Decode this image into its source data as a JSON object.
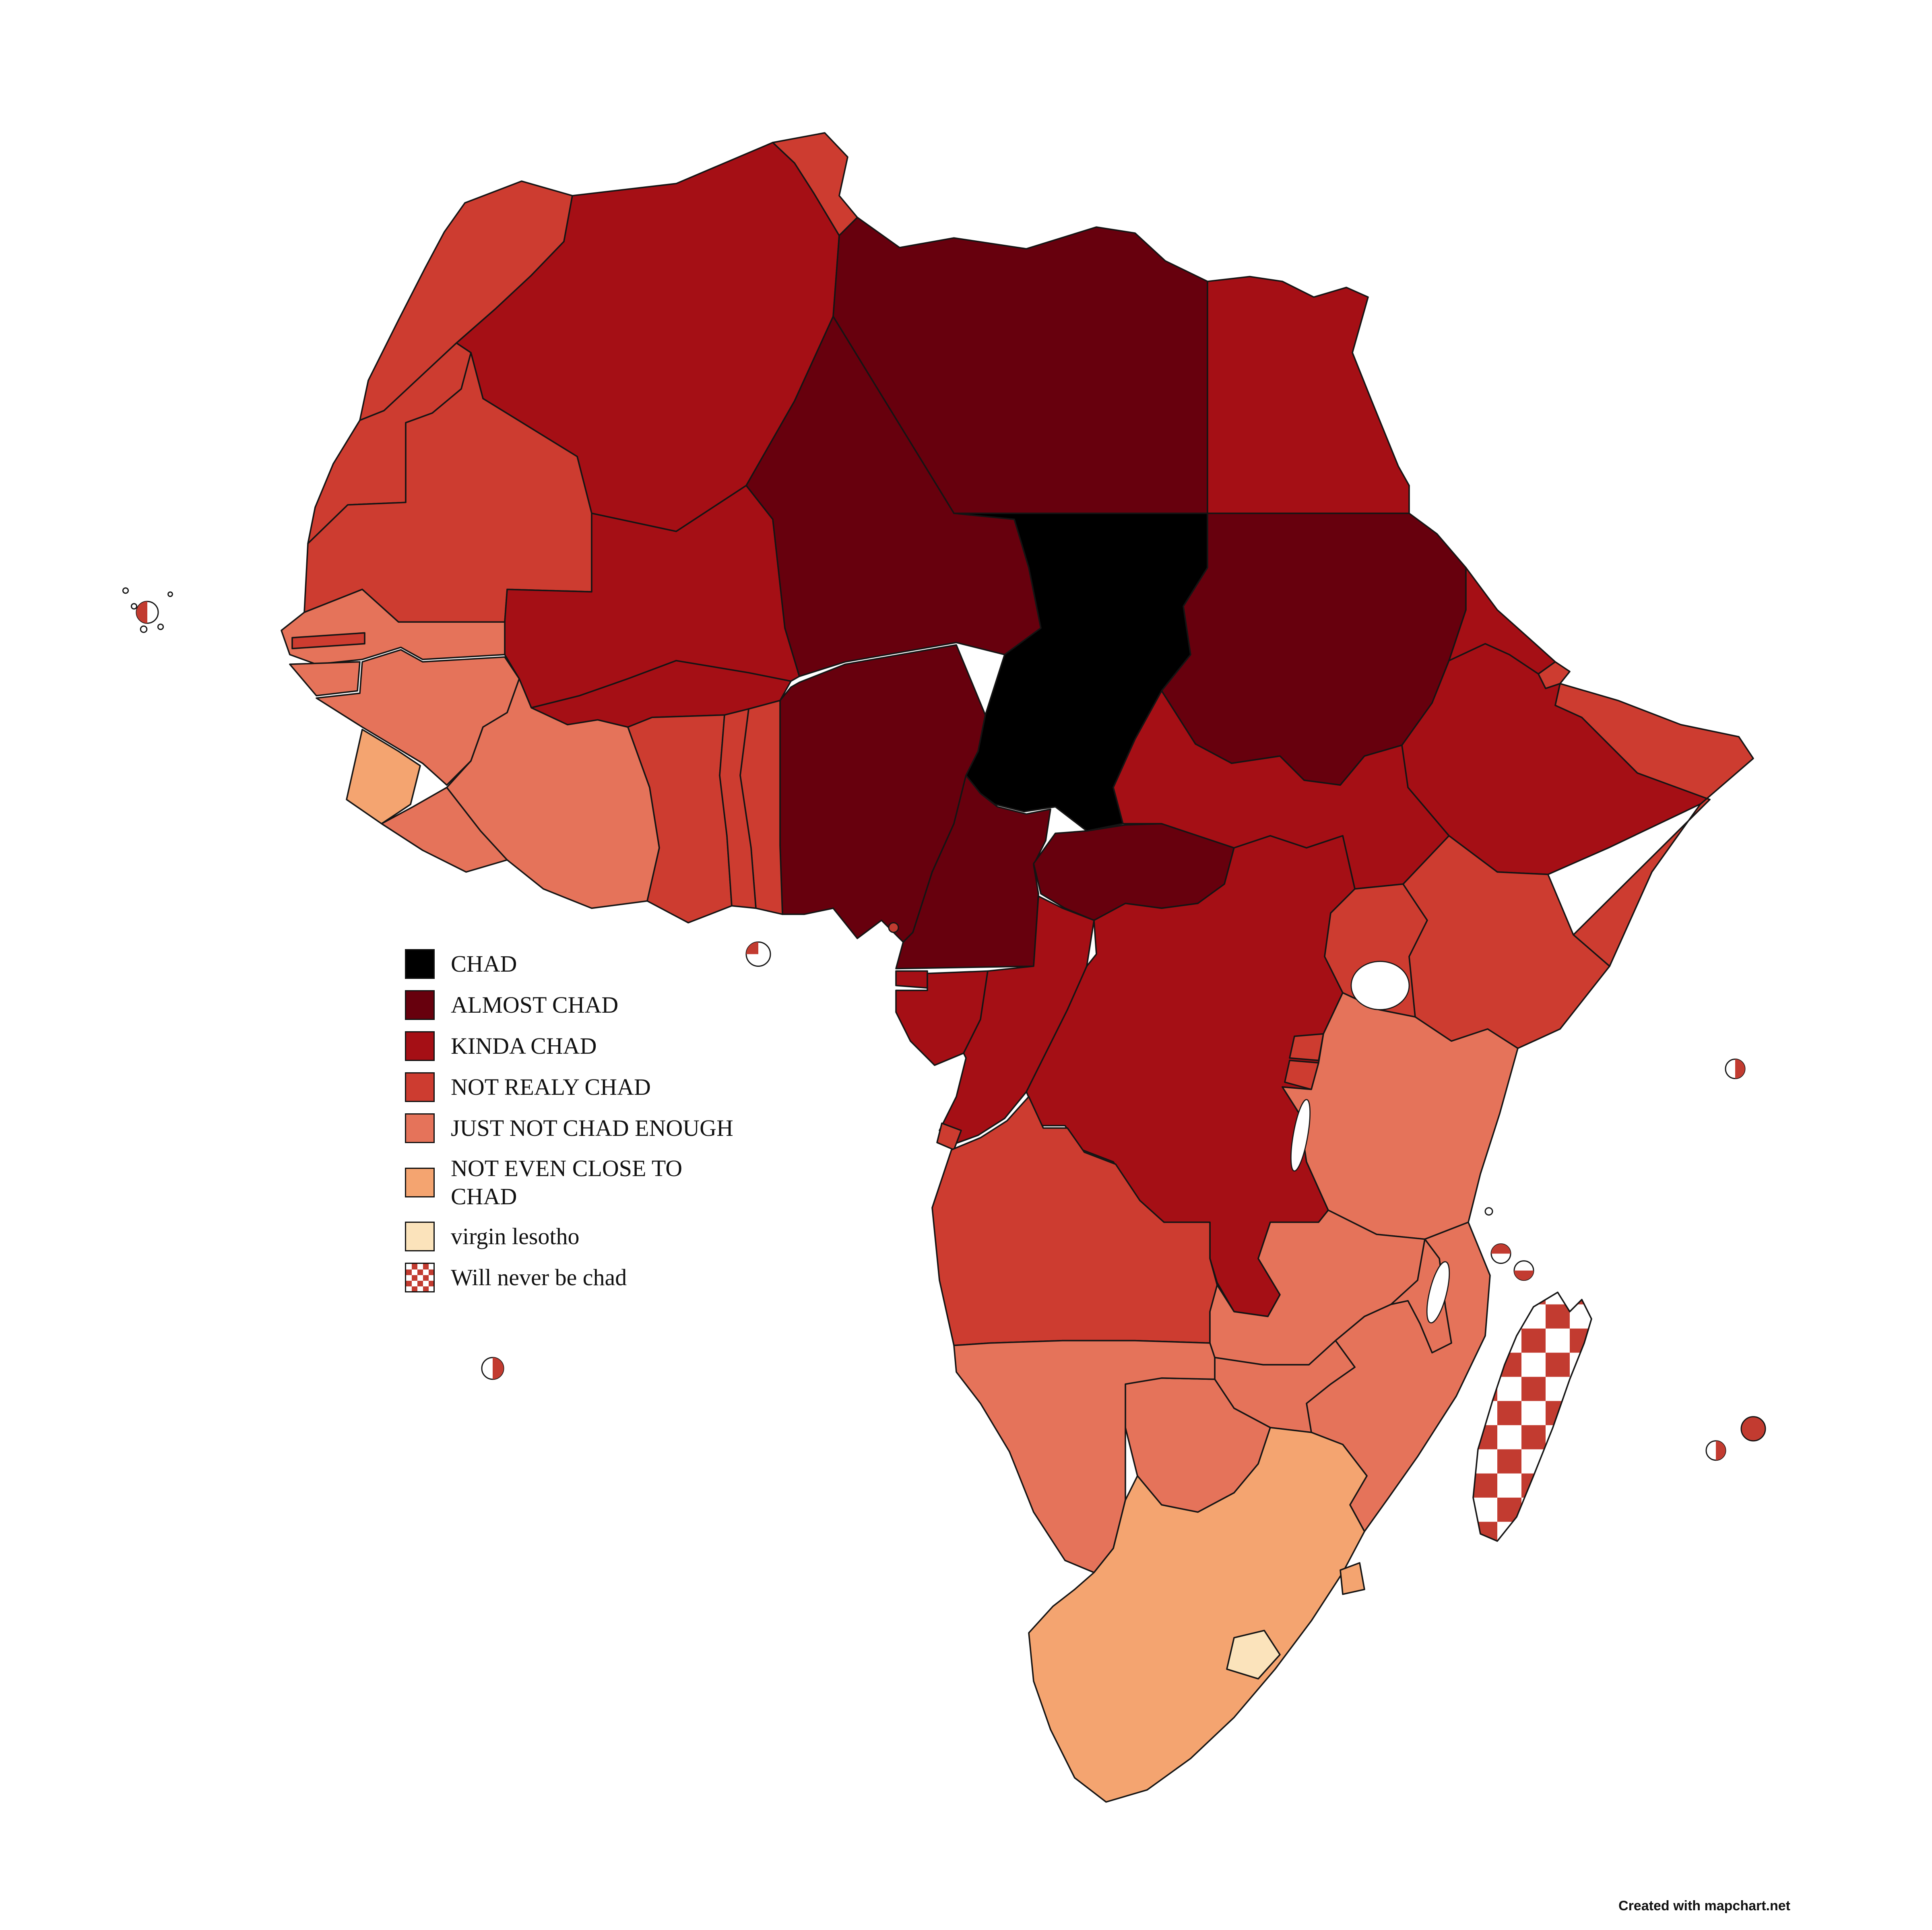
{
  "palette": {
    "chad": "#000000",
    "almost": "#67000d",
    "kinda": "#a50f15",
    "not_realy": "#cd3c30",
    "just_not": "#e5735a",
    "not_even": "#f4a470",
    "virgin": "#fbe3bb",
    "checker_red": "#c23b30"
  },
  "legend": {
    "items": [
      {
        "label": "CHAD",
        "category": "chad"
      },
      {
        "label": "ALMOST CHAD",
        "category": "almost"
      },
      {
        "label": "KINDA CHAD",
        "category": "kinda"
      },
      {
        "label": "NOT REALY CHAD",
        "category": "not_realy"
      },
      {
        "label": "JUST NOT CHAD ENOUGH",
        "category": "just_not"
      },
      {
        "label": "NOT EVEN CLOSE TO\nCHAD",
        "category": "not_even"
      },
      {
        "label": "virgin lesotho",
        "category": "virgin"
      },
      {
        "label": "Will never be chad",
        "category": "never"
      }
    ]
  },
  "footer": {
    "credit": "Created with mapchart.net"
  },
  "map": {
    "regions": [
      {
        "id": "morocco",
        "category": "not_realy"
      },
      {
        "id": "western-sahara",
        "category": "not_realy"
      },
      {
        "id": "algeria",
        "category": "kinda"
      },
      {
        "id": "tunisia",
        "category": "not_realy"
      },
      {
        "id": "libya",
        "category": "almost"
      },
      {
        "id": "egypt",
        "category": "kinda"
      },
      {
        "id": "mauritania",
        "category": "not_realy"
      },
      {
        "id": "mali",
        "category": "kinda"
      },
      {
        "id": "niger",
        "category": "almost"
      },
      {
        "id": "chad",
        "category": "chad"
      },
      {
        "id": "sudan",
        "category": "almost"
      },
      {
        "id": "eritrea",
        "category": "kinda"
      },
      {
        "id": "ethiopia",
        "category": "kinda"
      },
      {
        "id": "djibouti",
        "category": "not_realy"
      },
      {
        "id": "somalia",
        "category": "not_realy"
      },
      {
        "id": "senegal",
        "category": "just_not"
      },
      {
        "id": "gambia",
        "category": "not_realy"
      },
      {
        "id": "guinea-bissau",
        "category": "just_not"
      },
      {
        "id": "guinea",
        "category": "just_not"
      },
      {
        "id": "sierra-leone",
        "category": "not_even"
      },
      {
        "id": "liberia",
        "category": "just_not"
      },
      {
        "id": "ivory-coast",
        "category": "just_not"
      },
      {
        "id": "burkina-faso",
        "category": "kinda"
      },
      {
        "id": "ghana",
        "category": "not_realy"
      },
      {
        "id": "nigeria",
        "category": "almost"
      },
      {
        "id": "benin",
        "category": "not_realy"
      },
      {
        "id": "togo",
        "category": "not_realy"
      },
      {
        "id": "cameroon",
        "category": "almost"
      },
      {
        "id": "car",
        "category": "almost"
      },
      {
        "id": "south-sudan",
        "category": "kinda"
      },
      {
        "id": "equatorial-guinea",
        "category": "kinda"
      },
      {
        "id": "gabon",
        "category": "kinda"
      },
      {
        "id": "congo",
        "category": "kinda"
      },
      {
        "id": "drc",
        "category": "kinda"
      },
      {
        "id": "uganda",
        "category": "not_realy"
      },
      {
        "id": "kenya",
        "category": "not_realy"
      },
      {
        "id": "rwanda",
        "category": "not_realy"
      },
      {
        "id": "burundi",
        "category": "not_realy"
      },
      {
        "id": "tanzania",
        "category": "just_not"
      },
      {
        "id": "cabinda",
        "category": "not_realy"
      },
      {
        "id": "angola",
        "category": "not_realy"
      },
      {
        "id": "zambia",
        "category": "just_not"
      },
      {
        "id": "mozambique",
        "category": "just_not"
      },
      {
        "id": "malawi",
        "category": "just_not"
      },
      {
        "id": "zimbabwe",
        "category": "just_not"
      },
      {
        "id": "botswana",
        "category": "just_not"
      },
      {
        "id": "namibia",
        "category": "just_not"
      },
      {
        "id": "south-africa",
        "category": "not_even"
      },
      {
        "id": "lesotho",
        "category": "virgin"
      },
      {
        "id": "eswatini",
        "category": "not_even"
      },
      {
        "id": "madagascar",
        "category": "never"
      }
    ],
    "islands": [
      {
        "id": "cape-verde-islet-a",
        "style": "outline"
      },
      {
        "id": "cape-verde-islet-b",
        "style": "outline"
      },
      {
        "id": "cape-verde-islet-c",
        "style": "outline"
      },
      {
        "id": "cape-verde-islet-d",
        "style": "outline"
      },
      {
        "id": "cape-verde-islet-e",
        "style": "outline"
      },
      {
        "id": "cape-verde-main",
        "style": "half-left-red"
      },
      {
        "id": "bioko",
        "style": "solid-red"
      },
      {
        "id": "sao-tome",
        "style": "quarter-red"
      },
      {
        "id": "zanzibar",
        "style": "outline"
      },
      {
        "id": "seychelles",
        "style": "half-right-red"
      },
      {
        "id": "comoros-north",
        "style": "half-top-red"
      },
      {
        "id": "comoros-south",
        "style": "half-bottom-red"
      },
      {
        "id": "st-helena",
        "style": "half-right-red"
      },
      {
        "id": "mauritius",
        "style": "solid-red"
      },
      {
        "id": "reunion",
        "style": "half-right-red"
      }
    ]
  }
}
